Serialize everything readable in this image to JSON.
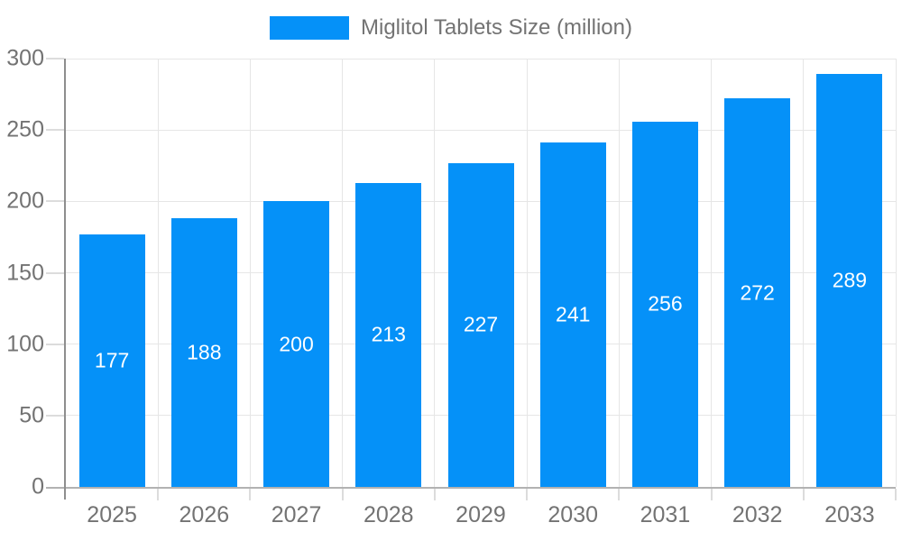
{
  "legend": {
    "label": "Miglitol Tablets Size (million)"
  },
  "colors": {
    "background": "#ffffff",
    "bar": "#0591f8",
    "bar_label": "#ffffff",
    "axis_text": "#737373",
    "y_axis_line": "#8e8e8e",
    "x_axis_line": "#b2b2b2",
    "gridline": "#e6e6e6",
    "tick": "#dcdcdc"
  },
  "chart_data": {
    "type": "bar",
    "title": "",
    "xlabel": "",
    "ylabel": "",
    "categories": [
      "2025",
      "2026",
      "2027",
      "2028",
      "2029",
      "2030",
      "2031",
      "2032",
      "2033"
    ],
    "series": [
      {
        "name": "Miglitol Tablets Size (million)",
        "values": [
          177,
          188,
          200,
          213,
          227,
          241,
          256,
          272,
          289
        ]
      }
    ],
    "value_labels_inside_bars": true,
    "ylim": [
      0,
      300
    ],
    "yticks": [
      0,
      50,
      100,
      150,
      200,
      250,
      300
    ],
    "grid": true,
    "legend_position": "top-center"
  }
}
